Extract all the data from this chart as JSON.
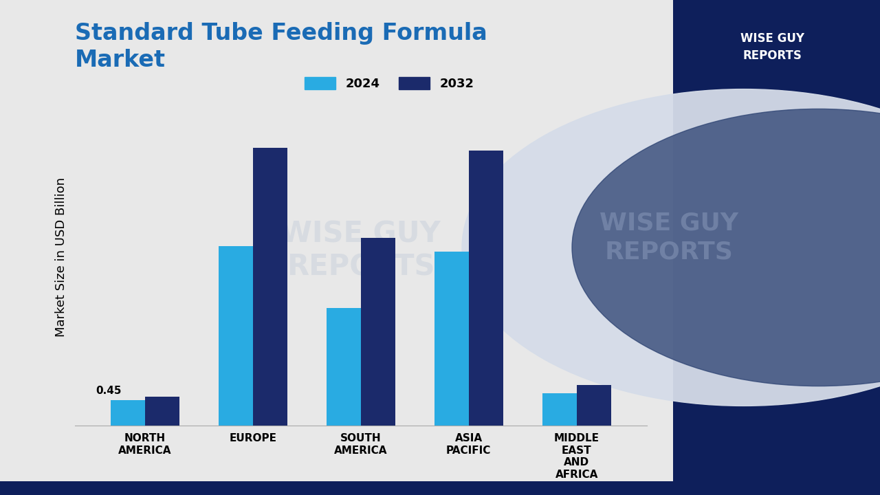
{
  "title": "Standard Tube Feeding Formula\nMarket",
  "ylabel": "Market Size in USD Billion",
  "categories": [
    "NORTH\nAMERICA",
    "EUROPE",
    "SOUTH\nAMERICA",
    "ASIA\nPACIFIC",
    "MIDDLE\nEAST\nAND\nAFRICA"
  ],
  "values_2024": [
    0.45,
    3.2,
    2.1,
    3.1,
    0.58
  ],
  "values_2032": [
    0.52,
    4.95,
    3.35,
    4.9,
    0.72
  ],
  "color_2024": "#29ABE2",
  "color_2032": "#1B2A6B",
  "background_color": "#E8E8E8",
  "right_panel_color": "#0E1F5B",
  "title_color": "#1A6BB5",
  "annotation_value": "0.45",
  "legend_2024": "2024",
  "legend_2032": "2032",
  "bar_width": 0.32,
  "ylim": [
    0,
    6.0
  ],
  "title_fontsize": 24,
  "ylabel_fontsize": 13,
  "tick_label_fontsize": 11,
  "legend_fontsize": 13,
  "watermark_color": "#c0c8d8",
  "circle_color": "#d5dce8",
  "head_color": "#2a4070"
}
